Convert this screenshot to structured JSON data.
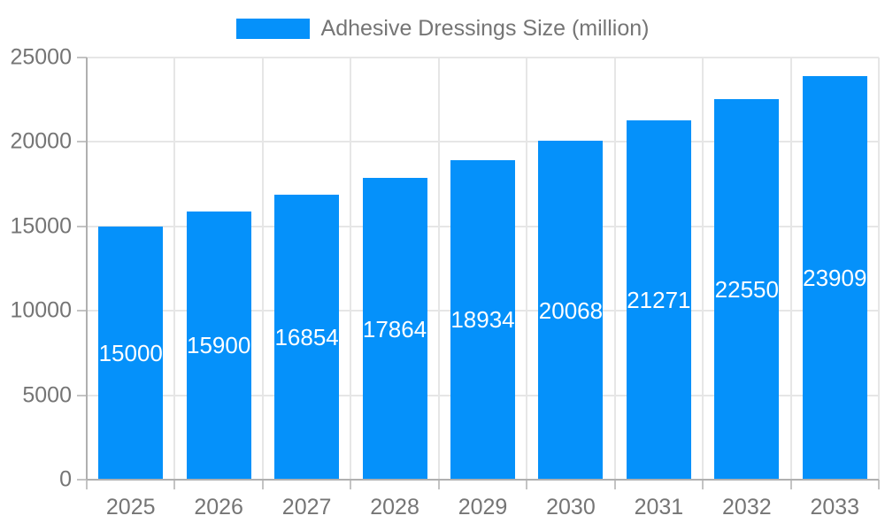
{
  "legend": {
    "label": "Adhesive Dressings Size (million)"
  },
  "chart_data": {
    "type": "bar",
    "title": "Adhesive Dressings Size (million)",
    "categories": [
      "2025",
      "2026",
      "2027",
      "2028",
      "2029",
      "2030",
      "2031",
      "2032",
      "2033"
    ],
    "series": [
      {
        "name": "Adhesive Dressings Size (million)",
        "values": [
          15000,
          15900,
          16854,
          17864,
          18934,
          20068,
          21271,
          22550,
          23909
        ]
      }
    ],
    "xlabel": "",
    "ylabel": "",
    "ylim": [
      0,
      25000
    ],
    "yticks": [
      0,
      5000,
      10000,
      15000,
      20000,
      25000
    ],
    "grid": true,
    "legend_position": "top",
    "bar_value_labels_shown": true,
    "colors": {
      "bar": "#0591fa",
      "bar_value_text": "#ffffff",
      "axis_text": "#757575",
      "legend_text": "#757575",
      "gridline": "#e6e6e6",
      "axis_line": "#b0b0b0",
      "tick_mark": "#c4c4c4",
      "background": "#ffffff"
    }
  }
}
